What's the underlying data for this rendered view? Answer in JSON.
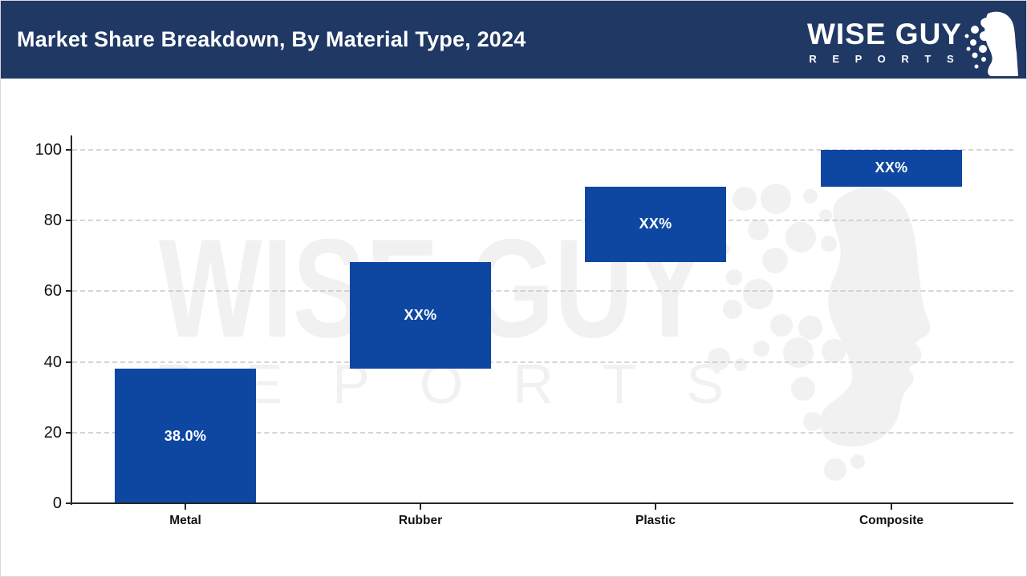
{
  "header": {
    "title": "Market Share Breakdown, By Material Type, 2024",
    "logo": {
      "name": "WISE GUY",
      "sub": "R E P O R T S"
    }
  },
  "watermark": {
    "name": "WISE GUY",
    "sub": "REPORTS"
  },
  "colors": {
    "header_bg": "#1f3864",
    "bar": "#0d47a1",
    "axis": "#262626",
    "gridline": "#bebebe",
    "watermark": "#f1f1f2",
    "label_on_bar": "#ffffff"
  },
  "chart_data": {
    "type": "bar",
    "subtype": "waterfall",
    "title": "Market Share Breakdown, By Material Type, 2024",
    "xlabel": "",
    "ylabel": "",
    "ylim": [
      0,
      104
    ],
    "yticks": [
      0,
      20,
      40,
      60,
      80,
      100
    ],
    "grid": "horizontal-dashed",
    "legend": "none",
    "categories": [
      "Metal",
      "Rubber",
      "Plastic",
      "Composite"
    ],
    "bars": [
      {
        "category": "Metal",
        "start": 0,
        "end": 38.0,
        "label": "38.0%"
      },
      {
        "category": "Rubber",
        "start": 38.0,
        "end": 68.3,
        "label": "XX%"
      },
      {
        "category": "Plastic",
        "start": 68.3,
        "end": 89.6,
        "label": "XX%"
      },
      {
        "category": "Composite",
        "start": 89.6,
        "end": 100.0,
        "label": "XX%"
      }
    ]
  }
}
